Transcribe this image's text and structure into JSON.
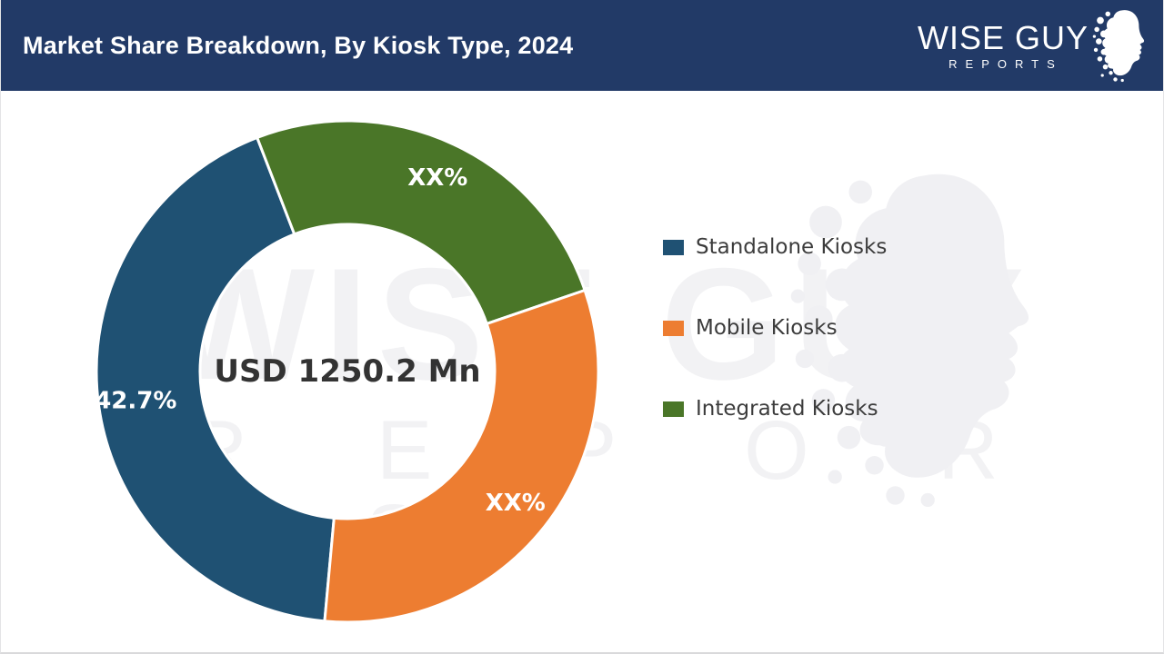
{
  "header": {
    "title": "Market Share Breakdown, By Kiosk Type, 2024",
    "logo": {
      "line1": "WISE GUY",
      "line2": "REPORTS"
    }
  },
  "watermark": {
    "line1": "WISE GUY",
    "line2": "R E P O R T S"
  },
  "chart_data": {
    "type": "pie",
    "subtype": "donut",
    "title": "Market Share Breakdown, By Kiosk Type, 2024",
    "center_label": "USD 1250.2 Mn",
    "legend_position": "right",
    "start_angle_deg": 185.2,
    "draw_order_indices": [
      0,
      2,
      1
    ],
    "inner_radius_ratio": 0.587,
    "series": [
      {
        "name": "Standalone Kiosks",
        "value": 42.7,
        "display_label": "42.7%",
        "color": "#1F5173"
      },
      {
        "name": "Mobile Kiosks",
        "value": 31.7,
        "display_label": "XX%",
        "color": "#ED7D31"
      },
      {
        "name": "Integrated Kiosks",
        "value": 25.6,
        "display_label": "XX%",
        "color": "#4A7628"
      }
    ],
    "colors": {
      "header_bg": "#223A67",
      "center_text": "#333333",
      "watermark": "#F2F2F4"
    }
  }
}
